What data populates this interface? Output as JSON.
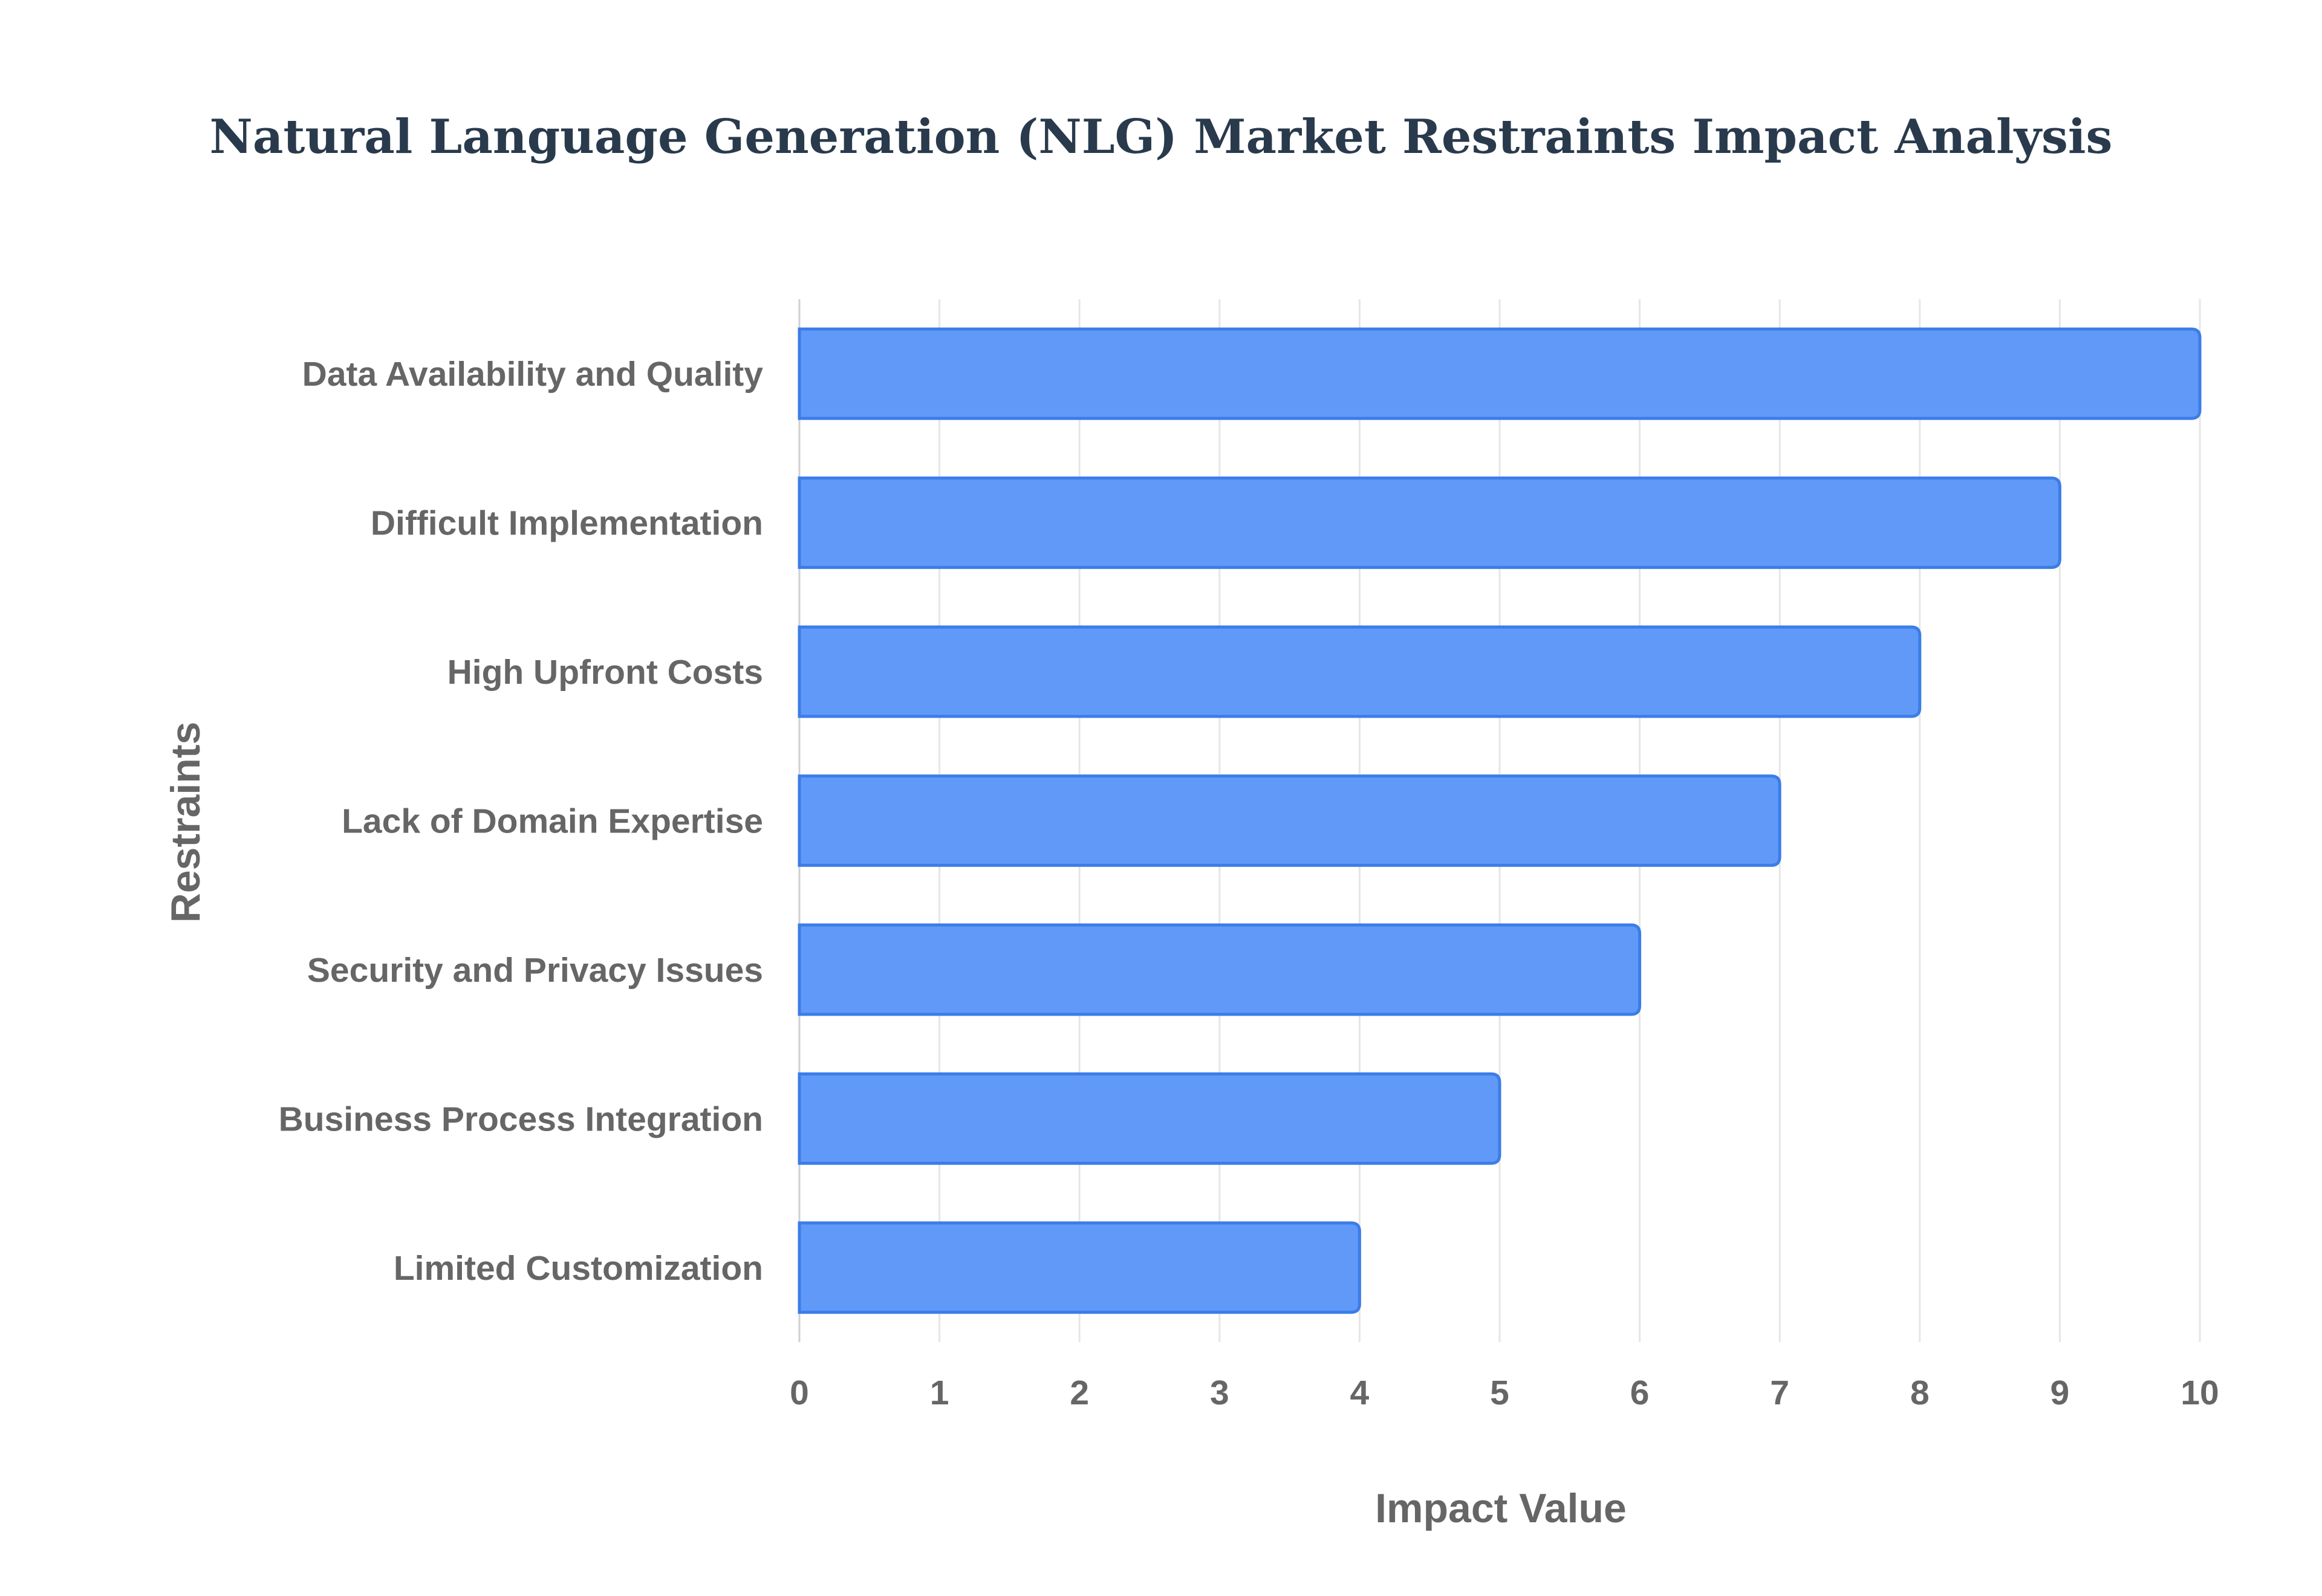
{
  "chart_data": {
    "type": "bar",
    "orientation": "horizontal",
    "title": "Natural Language Generation (NLG) Market Restraints Impact Analysis",
    "xlabel": "Impact Value",
    "ylabel": "Restraints",
    "xlim": [
      0,
      10
    ],
    "x_ticks": [
      0,
      1,
      2,
      3,
      4,
      5,
      6,
      7,
      8,
      9,
      10
    ],
    "grid": true,
    "legend": "none",
    "bar_color": "#6099f7",
    "bar_border_color": "#3b7de8",
    "categories": [
      "Data Availability and Quality",
      "Difficult Implementation",
      "High Upfront Costs",
      "Lack of Domain Expertise",
      "Security and Privacy Issues",
      "Business Process Integration",
      "Limited Customization"
    ],
    "values": [
      10,
      9,
      8,
      7,
      6,
      5,
      4
    ]
  }
}
